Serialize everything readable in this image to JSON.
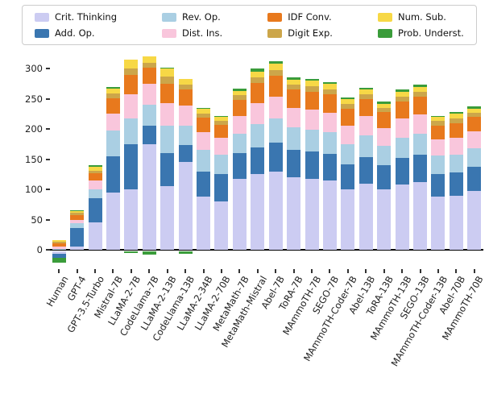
{
  "figure": {
    "background": "#ffffff",
    "axis_line_color": "#000000",
    "tick_color": "#333333",
    "text_color": "#222222",
    "legend_border_color": "#cccccc"
  },
  "chart_data": {
    "type": "bar",
    "stacked": true,
    "title": "",
    "xlabel": "",
    "ylabel": "",
    "grid": false,
    "legend_position": "top",
    "legend_columns": 4,
    "ylim": [
      -35,
      345
    ],
    "yticks": [
      0,
      50,
      100,
      150,
      200,
      250,
      300
    ],
    "categories": [
      "Human",
      "GPT-4",
      "GPT-3.5-Turbo",
      "Mistral-7B",
      "LLaMA-2-7B",
      "CodeLlama-7B",
      "LLaMA-2-13B",
      "CodeLlama-13B",
      "LLaMA-2-34B",
      "LLaMA-2-70B",
      "MetaMath-7B",
      "MetaMath-Mistral",
      "Abel-7B",
      "ToRA-7B",
      "MAmmoTH-7B",
      "SEGO-7B",
      "MAmmoTH-Coder-7B",
      "Abel-13B",
      "ToRA-13B",
      "MAmmoTH-13B",
      "SEGO-13B",
      "MAmmoTH-Coder-13B",
      "Abel-70B",
      "MAmmoTH-70B"
    ],
    "series": [
      {
        "name": "Crit. Thinking",
        "color": "#ccccf2",
        "values": [
          -4,
          6,
          45,
          95,
          100,
          175,
          105,
          145,
          88,
          80,
          118,
          125,
          130,
          120,
          118,
          115,
          100,
          110,
          100,
          108,
          112,
          88,
          90,
          98
        ]
      },
      {
        "name": "Add. Op.",
        "color": "#3a76b0",
        "values": [
          -6,
          30,
          40,
          60,
          75,
          30,
          55,
          28,
          42,
          45,
          42,
          45,
          48,
          45,
          45,
          44,
          42,
          44,
          40,
          44,
          45,
          38,
          38,
          40
        ]
      },
      {
        "name": "Rev. Op.",
        "color": "#aacfe3",
        "values": [
          2,
          8,
          15,
          42,
          42,
          35,
          45,
          32,
          35,
          32,
          32,
          38,
          40,
          38,
          36,
          36,
          33,
          35,
          32,
          34,
          35,
          30,
          30,
          30
        ]
      },
      {
        "name": "Dist. Ins.",
        "color": "#f9c6dc",
        "values": [
          4,
          6,
          15,
          28,
          40,
          35,
          38,
          34,
          30,
          28,
          30,
          35,
          36,
          32,
          33,
          32,
          30,
          32,
          30,
          32,
          32,
          27,
          28,
          28
        ]
      },
      {
        "name": "IDF Conv.",
        "color": "#e8791d",
        "values": [
          5,
          8,
          12,
          26,
          33,
          26,
          32,
          26,
          24,
          22,
          26,
          33,
          34,
          30,
          30,
          30,
          28,
          28,
          26,
          28,
          29,
          23,
          24,
          24
        ]
      },
      {
        "name": "Digit Exp.",
        "color": "#cca64a",
        "values": [
          2,
          3,
          4,
          8,
          10,
          8,
          12,
          8,
          7,
          6,
          8,
          10,
          10,
          8,
          9,
          9,
          8,
          8,
          7,
          8,
          8,
          7,
          8,
          7
        ]
      },
      {
        "name": "Num. Sub.",
        "color": "#f7d846",
        "values": [
          3,
          3,
          7,
          8,
          15,
          11,
          13,
          10,
          7,
          7,
          7,
          9,
          10,
          9,
          9,
          9,
          8,
          8,
          7,
          8,
          9,
          7,
          7,
          7
        ]
      },
      {
        "name": "Prob. Underst.",
        "color": "#3a9c3a",
        "values": [
          -8,
          1,
          2,
          3,
          -2,
          -5,
          2,
          -4,
          2,
          2,
          4,
          5,
          4,
          3,
          3,
          3,
          3,
          3,
          3,
          3,
          3,
          2,
          3,
          3
        ]
      }
    ]
  }
}
